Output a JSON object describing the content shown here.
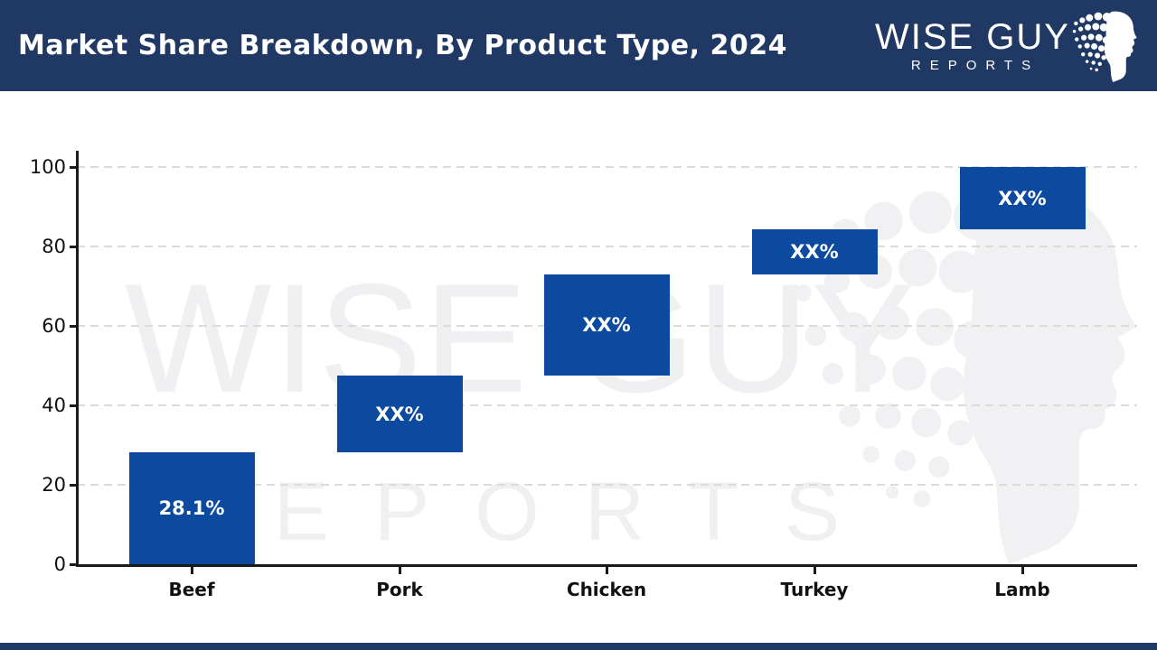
{
  "header": {
    "title": "Market Share Breakdown, By Product Type, 2024",
    "bg_color": "#1F3864",
    "logo": {
      "line1": "WISE GUY",
      "line2": "REPORTS"
    }
  },
  "watermark": {
    "line1": "WISE GUY",
    "line2": "REPORTS"
  },
  "chart_data": {
    "type": "bar",
    "subtype": "waterfall",
    "title": "Market Share Breakdown, By Product Type, 2024",
    "categories": [
      "Beef",
      "Pork",
      "Chicken",
      "Turkey",
      "Lamb"
    ],
    "segments": [
      {
        "category": "Beef",
        "start": 0,
        "end": 28.1,
        "value": 28.1,
        "label": "28.1%"
      },
      {
        "category": "Pork",
        "start": 28.1,
        "end": 47.5,
        "value": 19.4,
        "label": "XX%"
      },
      {
        "category": "Chicken",
        "start": 47.5,
        "end": 73.0,
        "value": 25.5,
        "label": "XX%"
      },
      {
        "category": "Turkey",
        "start": 73.0,
        "end": 84.3,
        "value": 11.3,
        "label": "XX%"
      },
      {
        "category": "Lamb",
        "start": 84.3,
        "end": 100.0,
        "value": 15.7,
        "label": "XX%"
      }
    ],
    "xlabel": "",
    "ylabel": "",
    "ylim": [
      0,
      100
    ],
    "yticks": [
      0,
      20,
      40,
      60,
      80,
      100
    ],
    "grid": "horizontal-dashed",
    "legend": null,
    "bar_color": "#0B4A9E",
    "bar_label_color": "#FFFFFF"
  }
}
